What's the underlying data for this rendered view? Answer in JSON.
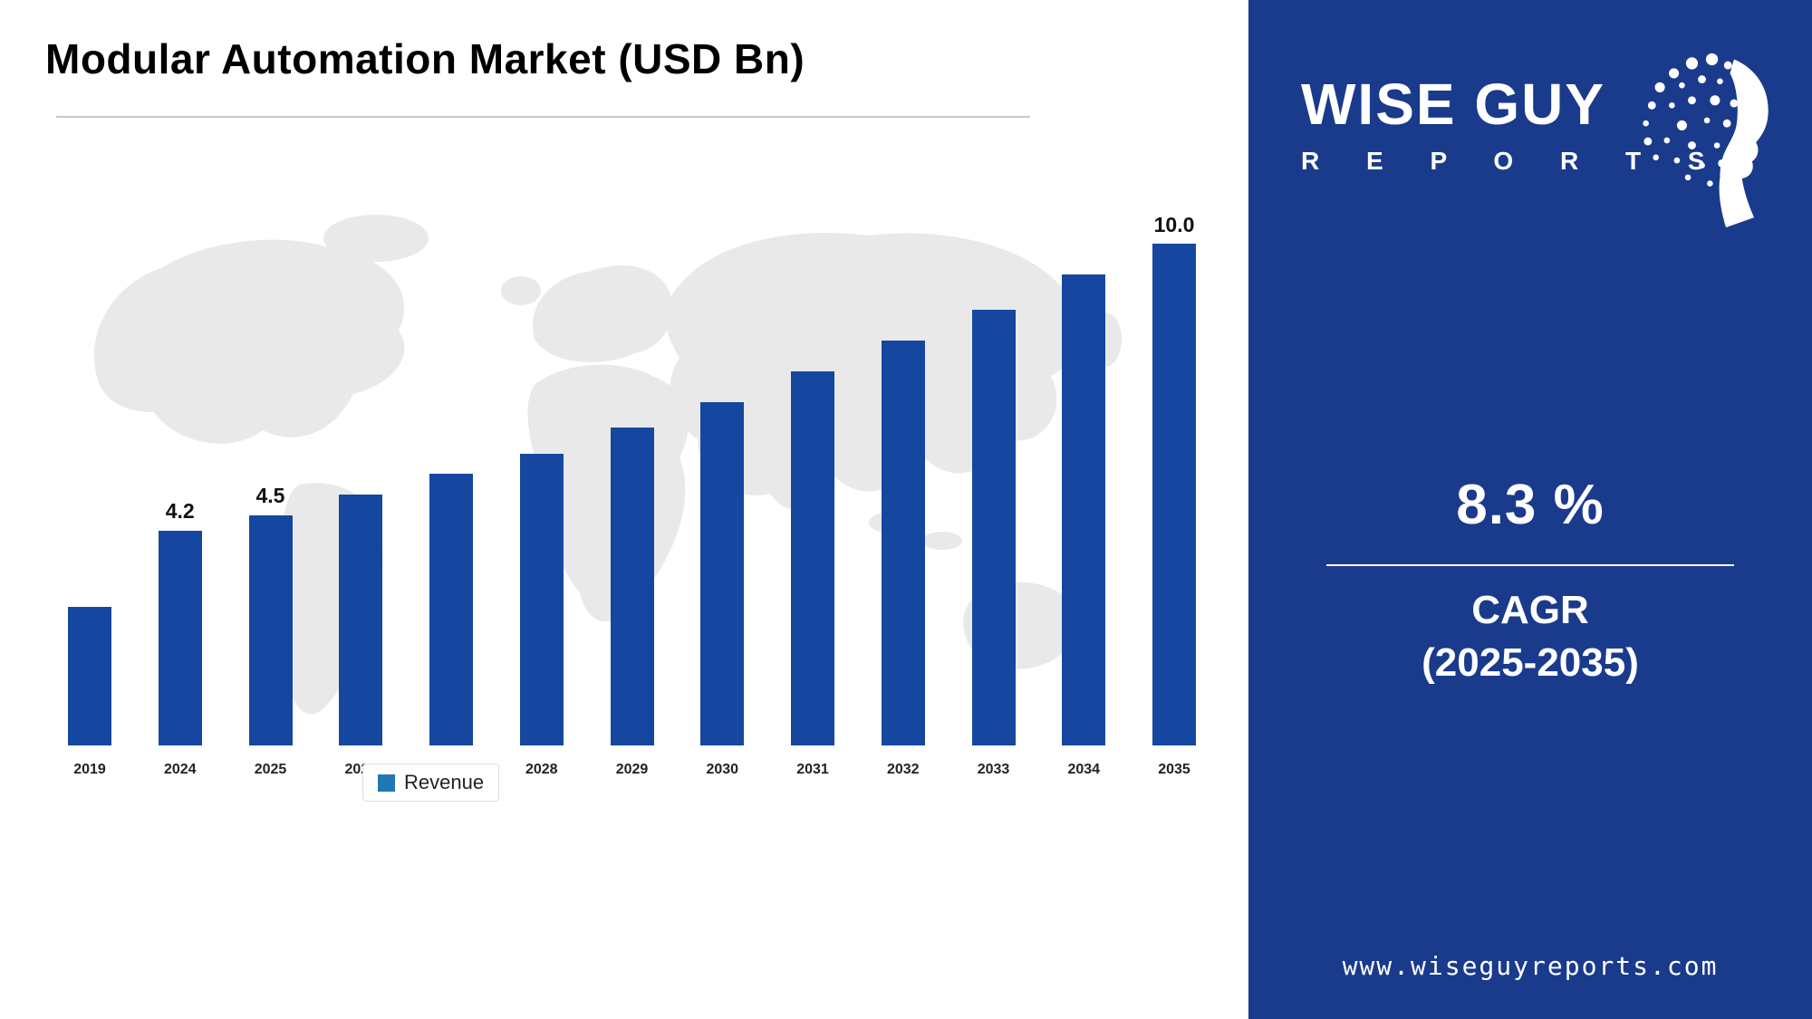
{
  "title": "Modular Automation Market (USD Bn)",
  "legend": {
    "label": "Revenue",
    "color": "#1f77b4"
  },
  "chart_data": {
    "type": "bar",
    "title": "Modular Automation Market (USD Bn)",
    "categories": [
      "2019",
      "2024",
      "2025",
      "2026",
      "2027",
      "2028",
      "2029",
      "2030",
      "2031",
      "2032",
      "2033",
      "2034",
      "2035"
    ],
    "values": [
      2.7,
      4.2,
      4.5,
      4.9,
      5.3,
      5.7,
      6.2,
      6.7,
      7.3,
      7.9,
      8.5,
      9.2,
      10.0
    ],
    "labels": [
      "",
      "4.2",
      "4.5",
      "",
      "",
      "",
      "",
      "",
      "",
      "",
      "",
      "",
      "10.0"
    ],
    "xlabel": "",
    "ylabel": "",
    "ylim": [
      0,
      10.4
    ],
    "grid": false,
    "legend_position": "bottom",
    "legend_entries": [
      "Revenue"
    ],
    "bar_color": "#1647a0"
  },
  "side_panel": {
    "background": "#1a3a8c",
    "logo_line1": "WISE GUY",
    "logo_line2": "R E P O R T S",
    "cagr_value": "8.3 %",
    "cagr_label": "CAGR",
    "cagr_range": "(2025-2035)",
    "website": "www.wiseguyreports.com"
  }
}
